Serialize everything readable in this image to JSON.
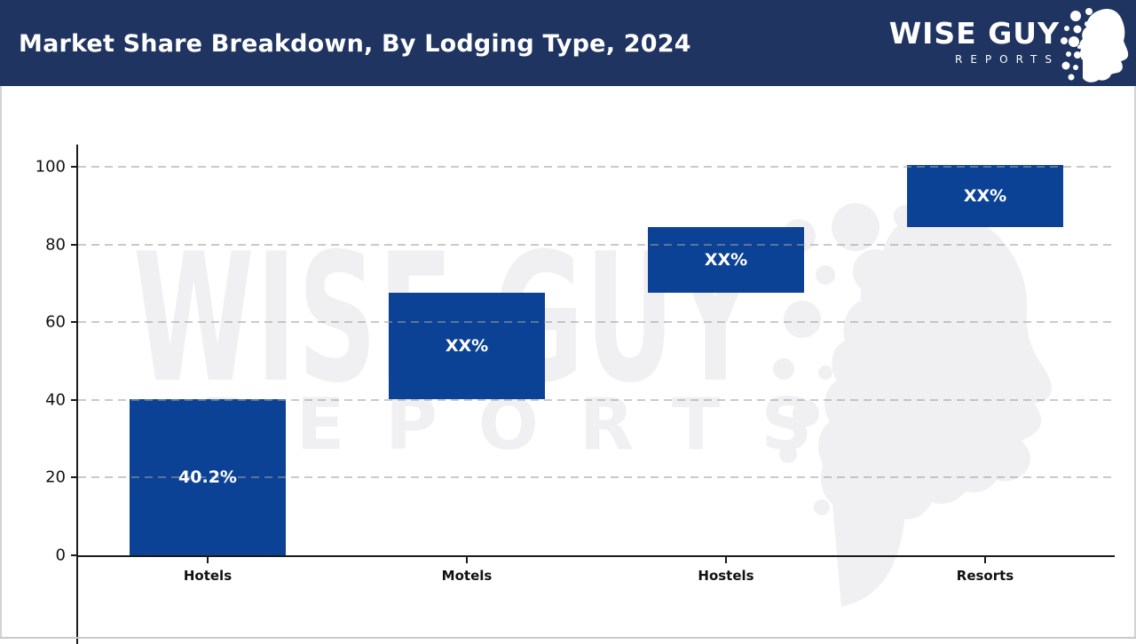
{
  "page": {
    "title": "Market Share Breakdown, By Lodging Type, 2024"
  },
  "logo": {
    "line1": "WISE GUY",
    "line2": "REPORTS"
  },
  "watermark": {
    "line1": "WISE GUY",
    "line2": "REPORTS"
  },
  "chart_data": {
    "type": "bar",
    "variant": "waterfall",
    "title": "Market Share Breakdown, By Lodging Type, 2024",
    "categories": [
      "Hotels",
      "Motels",
      "Hostels",
      "Resorts"
    ],
    "segments": [
      {
        "category": "Hotels",
        "from": 0,
        "to": 40.2,
        "label": "40.2%"
      },
      {
        "category": "Motels",
        "from": 40.2,
        "to": 67.5,
        "label": "XX%"
      },
      {
        "category": "Hostels",
        "from": 67.5,
        "to": 84.5,
        "label": "XX%"
      },
      {
        "category": "Resorts",
        "from": 84.5,
        "to": 100.4,
        "label": "XX%"
      }
    ],
    "ylim": [
      0,
      100
    ],
    "yticks": [
      0,
      20,
      40,
      60,
      80,
      100
    ],
    "xlabel": "",
    "ylabel": "",
    "grid": "horizontal-dashed",
    "legend": "none",
    "bar_color": "#0c4296",
    "bar_label_color": "#ffffff"
  },
  "colors": {
    "header_bg": "#1f3460",
    "bar": "#0c4296",
    "watermark": "#f0f0f2",
    "grid": "#9e9e9e",
    "axis": "#1a1a1a",
    "page_border": "#d2d2d2"
  }
}
